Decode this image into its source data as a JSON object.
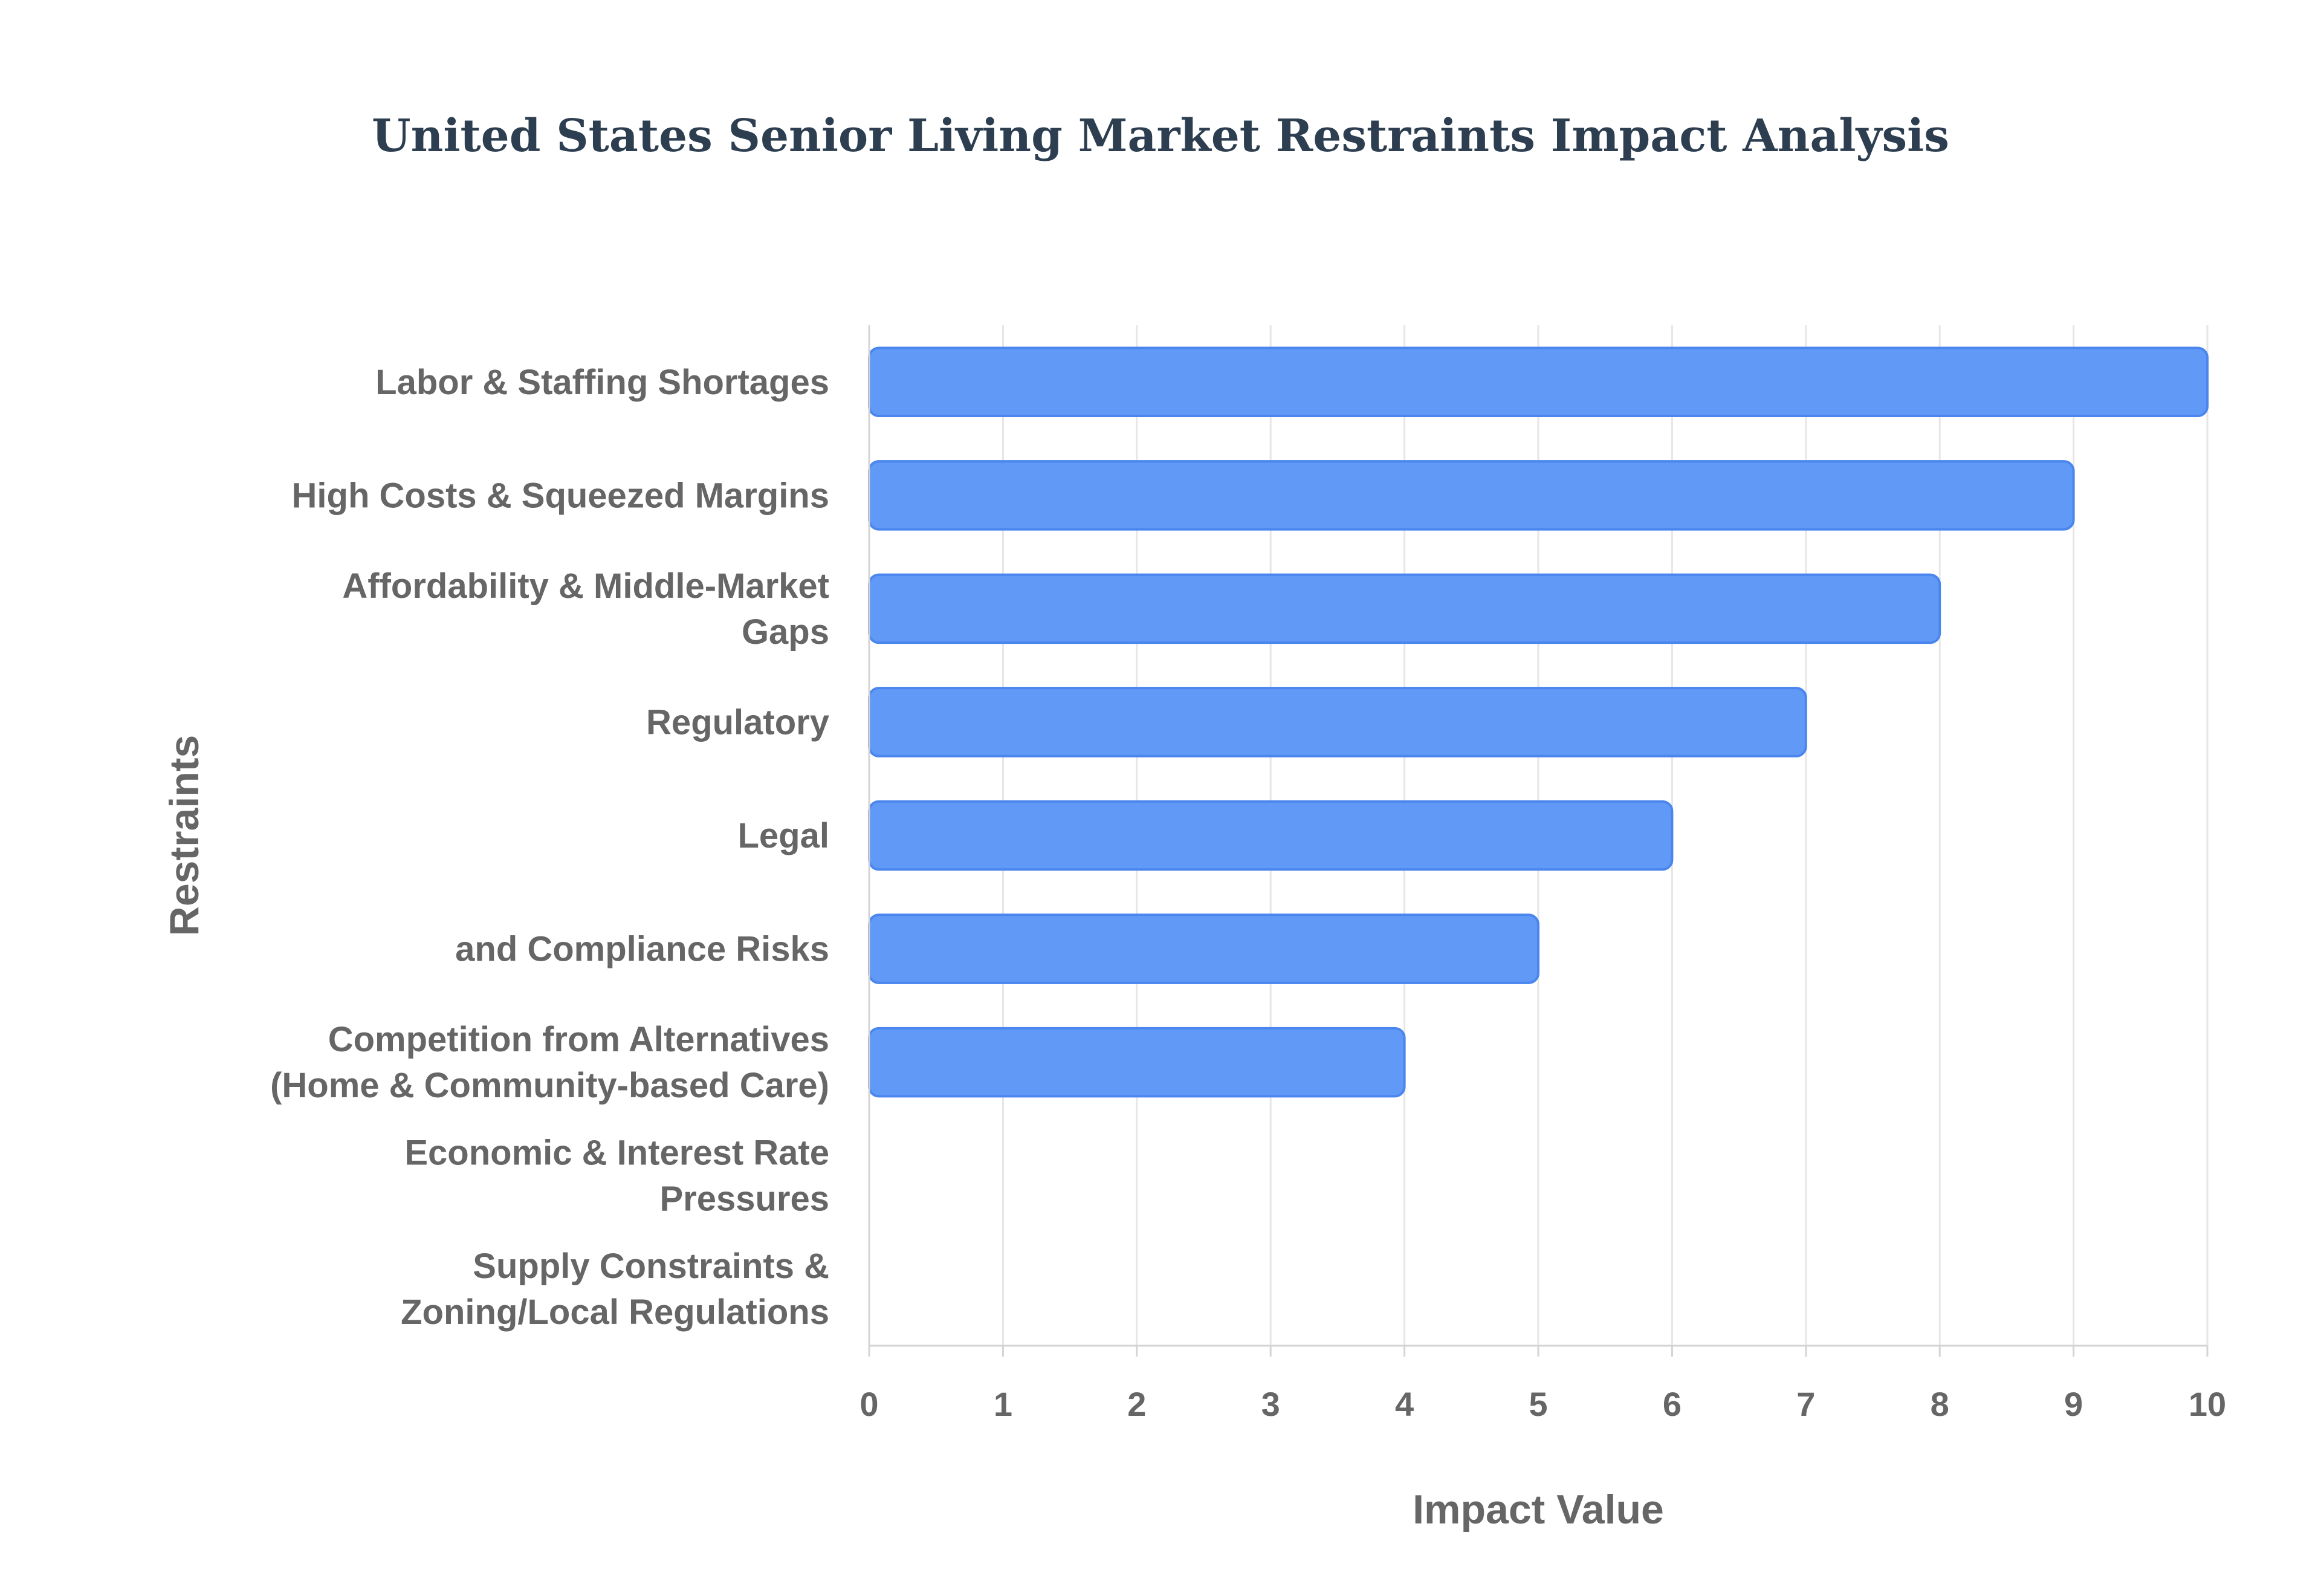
{
  "chart_data": {
    "type": "bar",
    "orientation": "horizontal",
    "title": "United States Senior Living Market Restraints Impact Analysis",
    "xlabel": "Impact Value",
    "ylabel": "Restraints",
    "xlim": [
      0,
      10
    ],
    "xticks": [
      "0",
      "1",
      "2",
      "3",
      "4",
      "5",
      "6",
      "7",
      "8",
      "9",
      "10"
    ],
    "grid": true,
    "categories": [
      "Labor & Staffing Shortages",
      "High Costs & Squeezed Margins",
      "Affordability & Middle-Market Gaps",
      "Regulatory",
      "Legal",
      "and Compliance Risks",
      "Competition from Alternatives (Home & Community-based Care)",
      "Economic & Interest Rate Pressures",
      "Supply Constraints & Zoning/Local Regulations"
    ],
    "category_lines": [
      [
        "Labor & Staffing Shortages"
      ],
      [
        "High Costs & Squeezed Margins"
      ],
      [
        "Affordability & Middle-Market",
        "Gaps"
      ],
      [
        "Regulatory"
      ],
      [
        "Legal"
      ],
      [
        "and Compliance Risks"
      ],
      [
        "Competition from Alternatives",
        "(Home & Community-based Care)"
      ],
      [
        "Economic & Interest Rate",
        "Pressures"
      ],
      [
        "Supply Constraints &",
        "Zoning/Local Regulations"
      ]
    ],
    "values": [
      10,
      9,
      8,
      7,
      6,
      5,
      4,
      null,
      null
    ],
    "bar_color": "#6199f6",
    "bar_border_color": "#4a86ee"
  }
}
